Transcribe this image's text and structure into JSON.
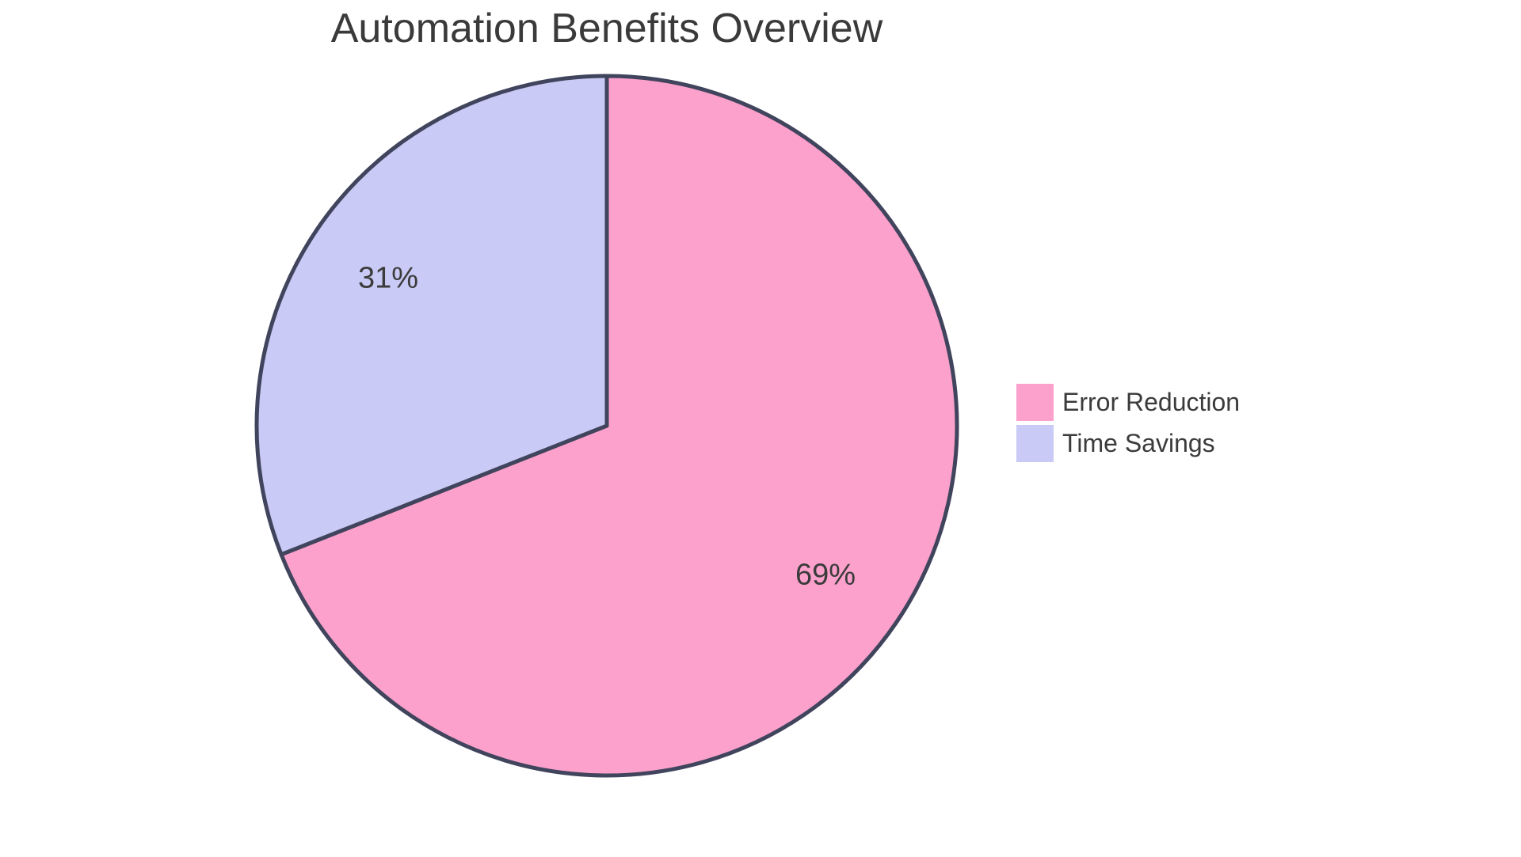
{
  "page": {
    "background_color": "#FFFFFF"
  },
  "chart_data": {
    "type": "pie",
    "title": "Automation Benefits Overview",
    "title_color": "#3A3A3A",
    "categories": [
      "Error Reduction",
      "Time Savings"
    ],
    "values": [
      69,
      31
    ],
    "unit": "%",
    "slices": [
      {
        "label": "Error Reduction",
        "value": 69,
        "display": "69%",
        "color": "#FBA1CC"
      },
      {
        "label": "Time Savings",
        "value": 31,
        "display": "31%",
        "color": "#C9CAF5"
      }
    ],
    "start_angle_deg": -90,
    "direction": "clockwise",
    "slice_border_color": "#40445C",
    "slice_border_width": 5,
    "percent_label_color": "#3B3B3B",
    "legend": {
      "position": "right-middle",
      "text_color": "#3B3B3B",
      "items": [
        "Error Reduction",
        "Time Savings"
      ]
    }
  }
}
